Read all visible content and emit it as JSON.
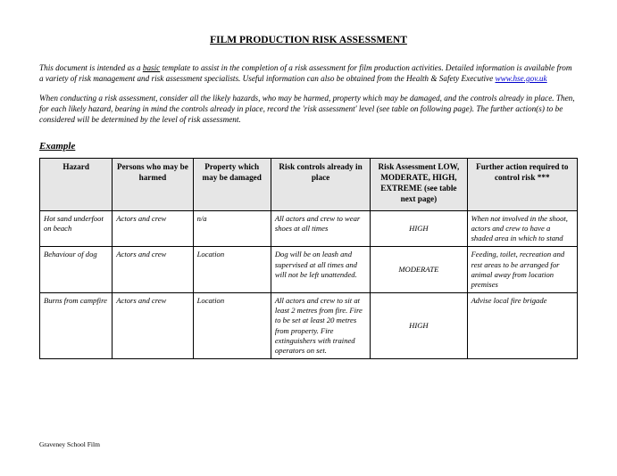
{
  "title": "FILM PRODUCTION RISK ASSESSMENT",
  "intro": {
    "p1a": "This document is intended as a ",
    "basic": "basic",
    "p1b": " template to assist in the completion of a risk assessment for film production activities.  Detailed information is available from a variety of risk management and risk assessment specialists.  Useful information can also be obtained from the Health & Safety Executive ",
    "link": "www.hse.gov.uk"
  },
  "para2": "When conducting a risk assessment, consider all the likely hazards, who may be harmed, property which may be damaged, and the controls already in place.  Then, for each likely hazard, bearing in mind the controls already in place, record the 'risk assessment' level (see table on following page).  The further action(s) to be considered will be determined by the level of risk assessment.",
  "exampleLabel": "Example",
  "headers": {
    "hazard": "Hazard",
    "persons": "Persons who may be harmed",
    "property": "Property which may be damaged",
    "controls": "Risk controls already in place",
    "risk": "Risk Assessment LOW, MODERATE, HIGH, EXTREME (see table next page)",
    "action": "Further action required to control risk ***"
  },
  "rows": [
    {
      "hazard": "Hot sand underfoot on beach",
      "persons": "Actors and crew",
      "property": "n/a",
      "controls": "All actors and crew to wear shoes at all times",
      "risk": "HIGH",
      "action": "When not involved in the shoot, actors and crew to have a shaded area in which to stand"
    },
    {
      "hazard": "Behaviour of dog",
      "persons": "Actors and crew",
      "property": "Location",
      "controls": "Dog will be on leash and supervised at all times and will not be left unattended.",
      "risk": "MODERATE",
      "action": "Feeding, toilet, recreation and rest areas to be arranged for animal away from location premises"
    },
    {
      "hazard": "Burns from campfire",
      "persons": "Actors and crew",
      "property": "Location",
      "controls": "All actors and crew to sit at least 2 metres from fire. Fire to be set at least 20 metres from property. Fire extinguishers with trained operators on set.",
      "risk": "HIGH",
      "action": "Advise local fire brigade"
    }
  ],
  "footer": "Graveney School Film"
}
